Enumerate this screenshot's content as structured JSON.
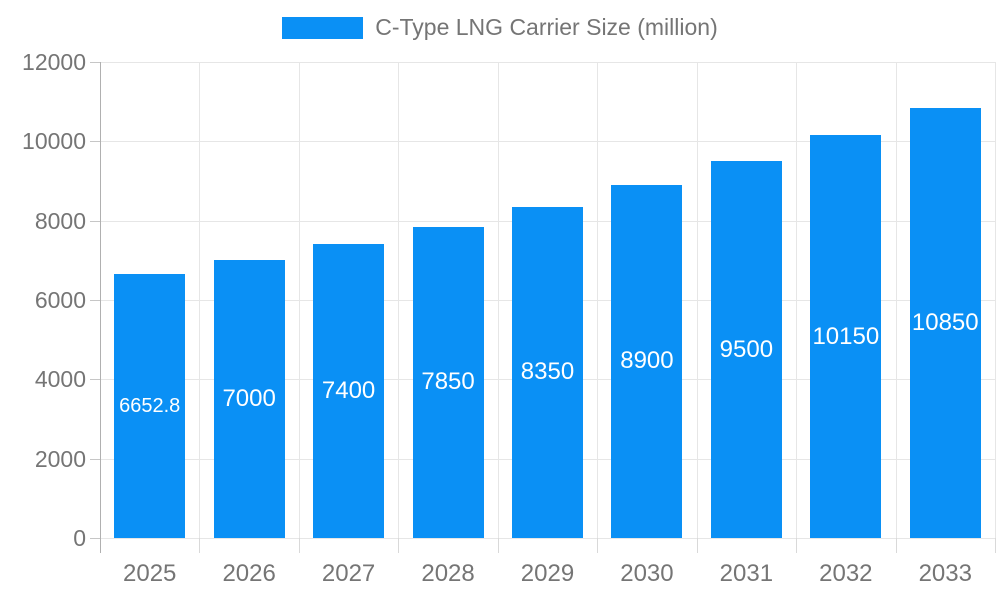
{
  "legend": {
    "label": "C-Type LNG Carrier Size (million)",
    "swatch_color": "#0a90f5"
  },
  "chart_data": {
    "type": "bar",
    "title": "C-Type LNG Carrier Size (million)",
    "categories": [
      "2025",
      "2026",
      "2027",
      "2028",
      "2029",
      "2030",
      "2031",
      "2032",
      "2033"
    ],
    "values": [
      6652.8,
      7000,
      7400,
      7850,
      8350,
      8900,
      9500,
      10150,
      10850
    ],
    "value_labels": [
      "6652.8",
      "7000",
      "7400",
      "7850",
      "8350",
      "8900",
      "9500",
      "10150",
      "10850"
    ],
    "xlabel": "",
    "ylabel": "",
    "ylim": [
      0,
      12000
    ],
    "ytick_step": 2000,
    "ytick_labels": [
      "0",
      "2000",
      "4000",
      "6000",
      "8000",
      "10000",
      "12000"
    ],
    "grid": true,
    "legend_position": "top-center",
    "bar_color": "#0a90f5",
    "value_label_color": "#ffffff",
    "axis_text_color": "#757575",
    "gridline_color": "#e6e6e6",
    "axis_line_color": "#b0b0b0"
  }
}
